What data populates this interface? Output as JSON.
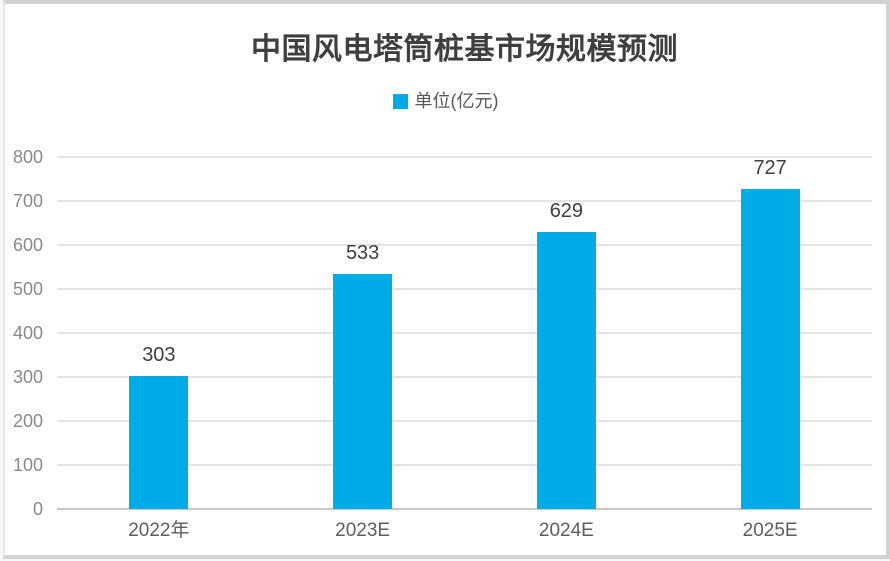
{
  "chart_data": {
    "type": "bar",
    "title": "中国风电塔筒桩基市场规模预测",
    "legend": {
      "label": "单位(亿元)",
      "swatch_color": "#00ACE8"
    },
    "categories": [
      "2022年",
      "2023E",
      "2024E",
      "2025E"
    ],
    "values": [
      303,
      533,
      629,
      727
    ],
    "bar_color": "#00ACE8",
    "ylim": [
      0,
      800
    ],
    "y_ticks": [
      0,
      100,
      200,
      300,
      400,
      500,
      600,
      700,
      800
    ],
    "grid": "horizontal",
    "legend_position": "top-center",
    "data_labels": true
  }
}
